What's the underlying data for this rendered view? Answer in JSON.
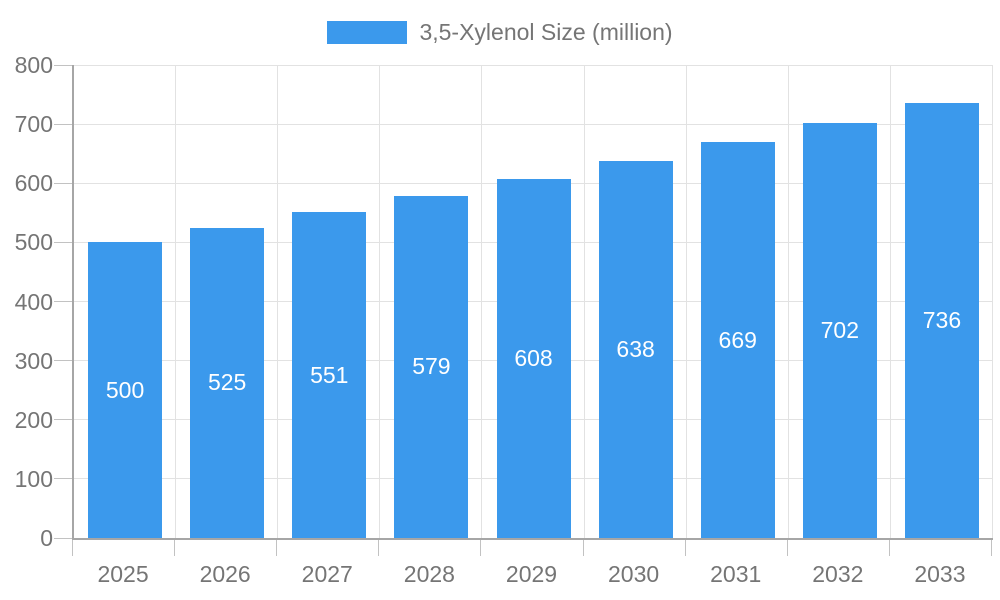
{
  "chart_data": {
    "type": "bar",
    "title": "",
    "legend_position": "top",
    "categories": [
      "2025",
      "2026",
      "2027",
      "2028",
      "2029",
      "2030",
      "2031",
      "2032",
      "2033"
    ],
    "series": [
      {
        "name": "3,5-Xylenol Size (million)",
        "values": [
          500,
          525,
          551,
          579,
          608,
          638,
          669,
          702,
          736
        ]
      }
    ],
    "xlabel": "",
    "ylabel": "",
    "ylim": [
      0,
      800
    ],
    "ytick_step": 100,
    "grid": "horizontal lines at every 100 and vertical lines at category boundaries",
    "bar_value_labels": "shown in white, centered horizontally and vertically inside each bar",
    "colors": {
      "bar": "#3B99EC",
      "grid": "#e2e2e2",
      "axis": "#a6a6a6",
      "tick": "#c2c2c2",
      "axis_text": "#757575",
      "bar_label_text": "#ffffff",
      "background": "#ffffff"
    }
  }
}
